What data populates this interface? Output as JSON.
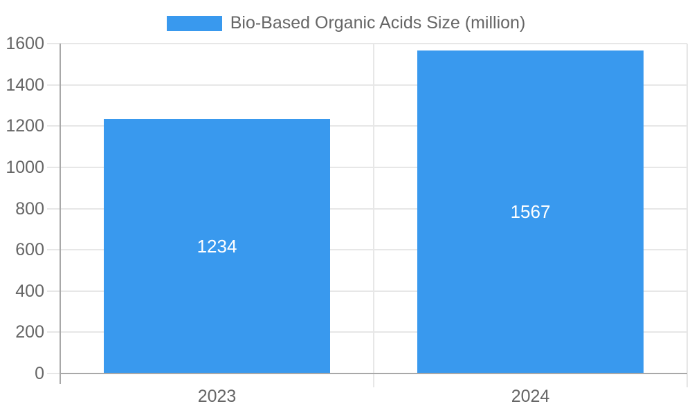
{
  "chart_data": {
    "type": "bar",
    "title": "Bio-Based Organic Acids Size (million)",
    "categories": [
      "2023",
      "2024"
    ],
    "series": [
      {
        "name": "Bio-Based Organic Acids Size (million)",
        "values": [
          1234,
          1567
        ]
      }
    ],
    "value_labels": [
      "1234",
      "1567"
    ],
    "xlabel": "",
    "ylabel": "",
    "ylim": [
      0,
      1600
    ],
    "ytick_step": 200,
    "ytick_labels": [
      "0",
      "200",
      "400",
      "600",
      "800",
      "1000",
      "1200",
      "1400",
      "1600"
    ],
    "grid": true,
    "legend_position": "top-center",
    "colors": {
      "bar": "#3999EE",
      "grid_line": "#E7E7E7",
      "axis_line": "#A8A8A8",
      "tick_text": "#666666",
      "value_label_text": "#FFFFFF",
      "background": "#FFFFFF"
    }
  }
}
